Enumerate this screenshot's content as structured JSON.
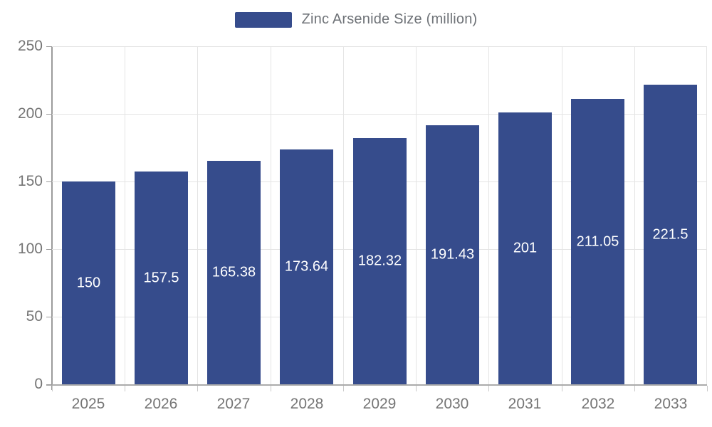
{
  "legend": {
    "items": [
      {
        "label": "Zinc Arsenide Size (million)",
        "color": "#364C8C"
      }
    ]
  },
  "chart_data": {
    "type": "bar",
    "title": "Zinc Arsenide Size (million)",
    "categories": [
      "2025",
      "2026",
      "2027",
      "2028",
      "2029",
      "2030",
      "2031",
      "2032",
      "2033"
    ],
    "series": [
      {
        "name": "Zinc Arsenide Size (million)",
        "color": "#364C8C",
        "values": [
          150,
          157.5,
          165.38,
          173.64,
          182.32,
          191.43,
          201,
          211.05,
          221.5
        ]
      }
    ],
    "value_labels": [
      "150",
      "157.5",
      "165.38",
      "173.64",
      "182.32",
      "191.43",
      "201",
      "211.05",
      "221.5"
    ],
    "xlabel": "",
    "ylabel": "",
    "ylim": [
      0,
      250
    ],
    "yticks": [
      0,
      50,
      100,
      150,
      200,
      250
    ],
    "grid": true,
    "legend_position": "top",
    "value_label_style": "inside-center-white"
  },
  "colors": {
    "bar": "#364C8C",
    "grid": "#e4e4e4",
    "axis_line": "#9b9b9b",
    "axis_text": "#757575",
    "value_text": "#ffffff",
    "background": "#ffffff"
  }
}
